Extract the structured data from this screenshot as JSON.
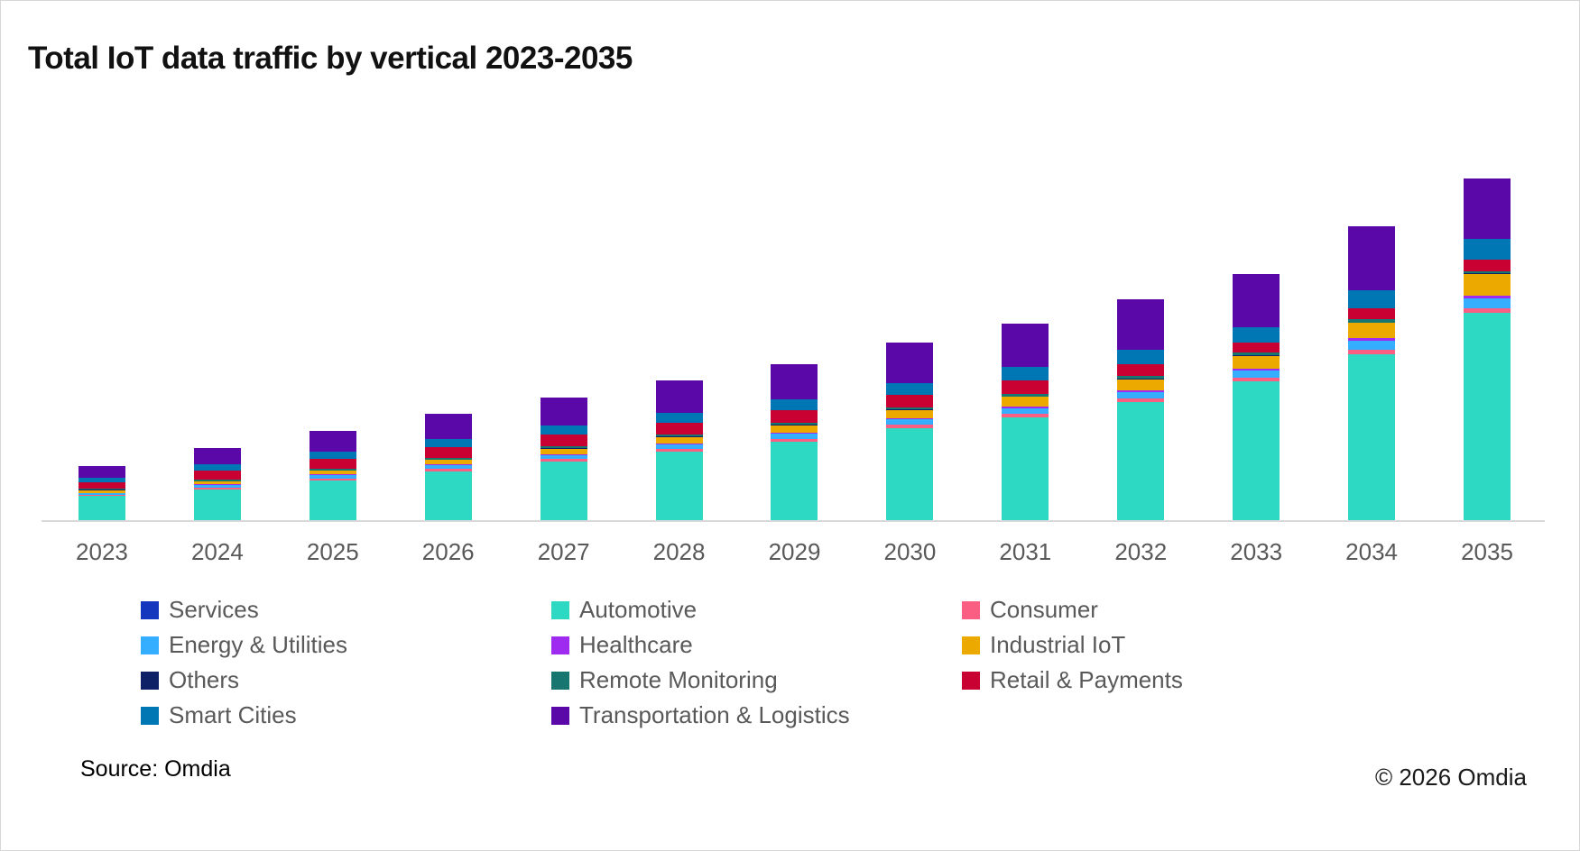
{
  "title": "Total IoT data traffic by vertical 2023-2035",
  "source_label": "Source: Omdia",
  "copyright": "© 2026 Omdia",
  "text_colors": {
    "title": "#111111",
    "axis_labels": "#595959",
    "legend_labels": "#595959"
  },
  "chart_data": {
    "type": "bar",
    "stacked": true,
    "title": "Total IoT data traffic by vertical 2023-2035",
    "xlabel": "",
    "ylabel": "",
    "y_axis_visible": false,
    "grid": false,
    "legend_position": "bottom",
    "note": "No y-axis or value labels are shown in the figure; values are relative units estimated from segment heights.",
    "categories": [
      "2023",
      "2024",
      "2025",
      "2026",
      "2027",
      "2028",
      "2029",
      "2030",
      "2031",
      "2032",
      "2033",
      "2034",
      "2035"
    ],
    "legend_order": [
      "Services",
      "Automotive",
      "Consumer",
      "Energy & Utilities",
      "Healthcare",
      "Industrial IoT",
      "Others",
      "Remote Monitoring",
      "Retail & Payments",
      "Smart Cities",
      "Transportation & Logistics"
    ],
    "series": [
      {
        "name": "Services",
        "color": "#1437BE",
        "values": [
          0.5,
          0.5,
          0.5,
          0.5,
          0.5,
          0.5,
          0.5,
          0.5,
          0.5,
          0.5,
          0.5,
          0.5,
          0.5
        ]
      },
      {
        "name": "Automotive",
        "color": "#2ED9C3",
        "values": [
          28,
          35,
          45,
          55,
          66,
          77,
          88,
          103,
          115,
          132,
          155,
          185,
          231
        ]
      },
      {
        "name": "Consumer",
        "color": "#FA5E82",
        "values": [
          1,
          2,
          2,
          2.5,
          2.5,
          3,
          3,
          3.5,
          3.5,
          4,
          4,
          5,
          5
        ]
      },
      {
        "name": "Energy & Utilities",
        "color": "#36AEFF",
        "values": [
          1.5,
          3,
          3.5,
          4,
          4.5,
          5,
          5.5,
          6,
          6.5,
          7,
          8,
          10,
          11
        ]
      },
      {
        "name": "Healthcare",
        "color": "#A02BF0",
        "values": [
          0.5,
          0.5,
          1,
          1,
          1,
          1,
          1.5,
          1.5,
          1.5,
          2,
          2,
          2.5,
          3
        ]
      },
      {
        "name": "Industrial IoT",
        "color": "#ECA900",
        "values": [
          3,
          3,
          4,
          5,
          6,
          7,
          8,
          9,
          11,
          12,
          14,
          17,
          24
        ]
      },
      {
        "name": "Others",
        "color": "#0F2166",
        "values": [
          0.5,
          0.5,
          0.5,
          0.5,
          0.5,
          0.5,
          0.5,
          0.5,
          0.5,
          0.5,
          0.5,
          0.5,
          0.5
        ]
      },
      {
        "name": "Remote Monitoring",
        "color": "#177770",
        "values": [
          1,
          1.5,
          1.5,
          2,
          2,
          2,
          2,
          2.5,
          2.5,
          3,
          3,
          3.5,
          2
        ]
      },
      {
        "name": "Retail & Payments",
        "color": "#C90032",
        "values": [
          7,
          10,
          11,
          12,
          13,
          13,
          14,
          14,
          15,
          13,
          11,
          12,
          13
        ]
      },
      {
        "name": "Smart Cities",
        "color": "#0077B5",
        "values": [
          5,
          7,
          8,
          9,
          10,
          11,
          12,
          13,
          15,
          16,
          17,
          20,
          23
        ]
      },
      {
        "name": "Transportation & Logistics",
        "color": "#5A08A8",
        "values": [
          13,
          18,
          23,
          27.5,
          31.5,
          36,
          39,
          44.5,
          48,
          56,
          59,
          71,
          67
        ]
      }
    ]
  }
}
